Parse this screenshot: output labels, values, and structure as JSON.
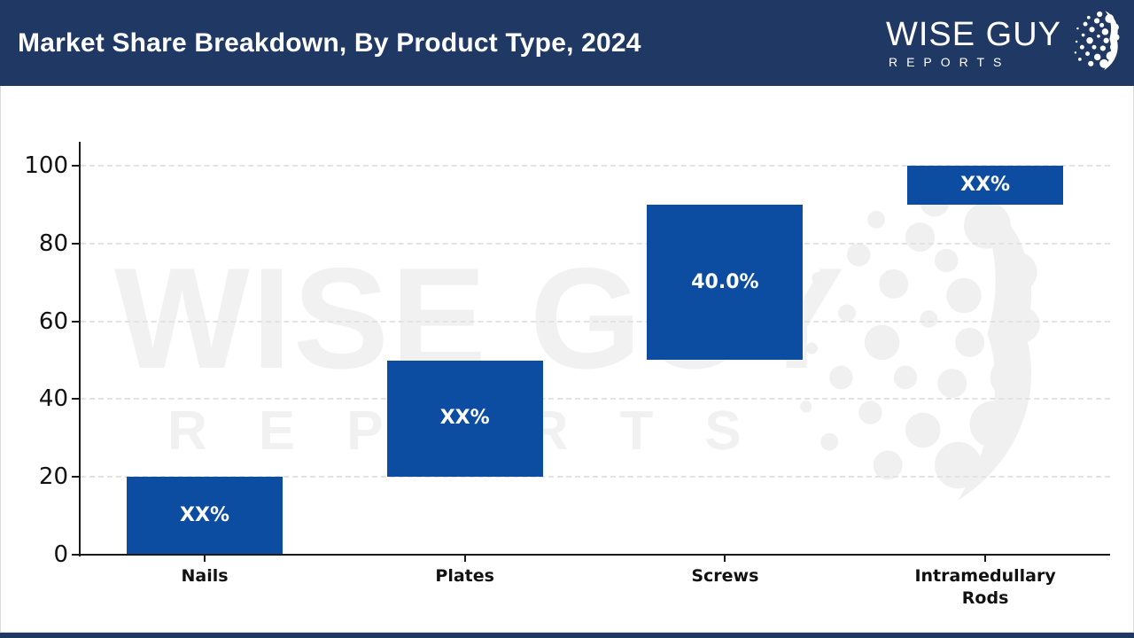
{
  "header": {
    "title": "Market Share Breakdown, By Product Type, 2024",
    "logo": {
      "wordmark": "WISE GUY",
      "sub": "REPORTS"
    }
  },
  "watermark": {
    "wordmark": "WISE GUY",
    "sub": "REPORTS"
  },
  "colors": {
    "header_bg": "#1f3864",
    "footer_bg": "#1f3864",
    "bar_blue": "#0d4da1",
    "grid": "#e3e3e3",
    "axis": "#1a1a1a",
    "watermark": "#f1f1f1"
  },
  "chart_data": {
    "type": "bar",
    "subtype": "floating-segment-waterfall",
    "title": "Market Share Breakdown, By Product Type, 2024",
    "categories": [
      "Nails",
      "Plates",
      "Screws",
      "Intramedullary Rods"
    ],
    "bars": [
      {
        "category": "Nails",
        "start": 0,
        "end": 20,
        "label": "XX%"
      },
      {
        "category": "Plates",
        "start": 20,
        "end": 50,
        "label": "XX%"
      },
      {
        "category": "Screws",
        "start": 50,
        "end": 90,
        "label": "40.0%"
      },
      {
        "category": "Intramedullary Rods",
        "start": 90,
        "end": 100,
        "label": "XX%"
      }
    ],
    "y_ticks": [
      0,
      20,
      40,
      60,
      80,
      100
    ],
    "ylim": [
      0,
      106
    ],
    "xlabel": "",
    "ylabel": "",
    "grid": "horizontal-dashed",
    "legend": "none",
    "bar_color": "#0d4da1",
    "bar_label_color": "#ffffff"
  }
}
